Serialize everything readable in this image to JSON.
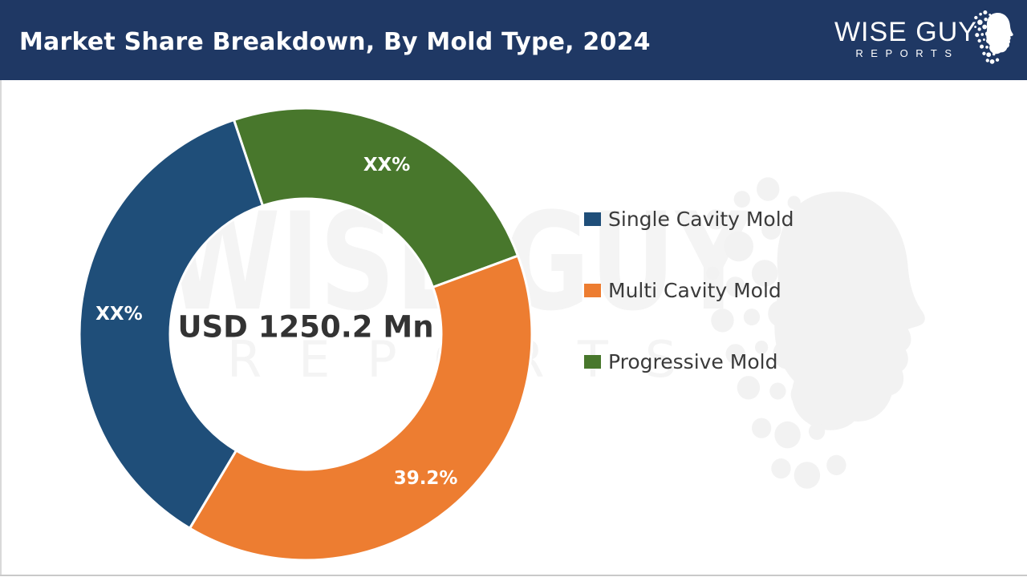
{
  "header": {
    "title": "Market Share Breakdown, By Mold Type, 2024",
    "logo": {
      "name": "WISE GUY",
      "subtitle": "REPORTS"
    }
  },
  "watermark": {
    "line1": "WISE GUY",
    "line2": "REPORTS"
  },
  "chart_data": {
    "type": "donut",
    "title": "Market Share Breakdown, By Mold Type, 2024",
    "center_label": "USD 1250.2 Mn",
    "start_angle_deg": -18.5,
    "slices": [
      {
        "name": "Progressive Mold",
        "label": "XX%",
        "percent": 24.5,
        "color": "#48772C"
      },
      {
        "name": "Multi Cavity Mold",
        "label": "39.2%",
        "percent": 39.2,
        "color": "#ED7D31"
      },
      {
        "name": "Single Cavity Mold",
        "label": "XX%",
        "percent": 36.3,
        "color": "#1F4E79"
      }
    ],
    "legend": [
      {
        "label": "Single Cavity Mold",
        "color": "#1F4E79"
      },
      {
        "label": "Multi Cavity Mold",
        "color": "#ED7D31"
      },
      {
        "label": "Progressive Mold",
        "color": "#48772C"
      }
    ],
    "legend_position": "right"
  },
  "colors": {
    "header_bg": "#1F3864",
    "watermark": "#F2F2F2",
    "text_dark": "#333333"
  }
}
